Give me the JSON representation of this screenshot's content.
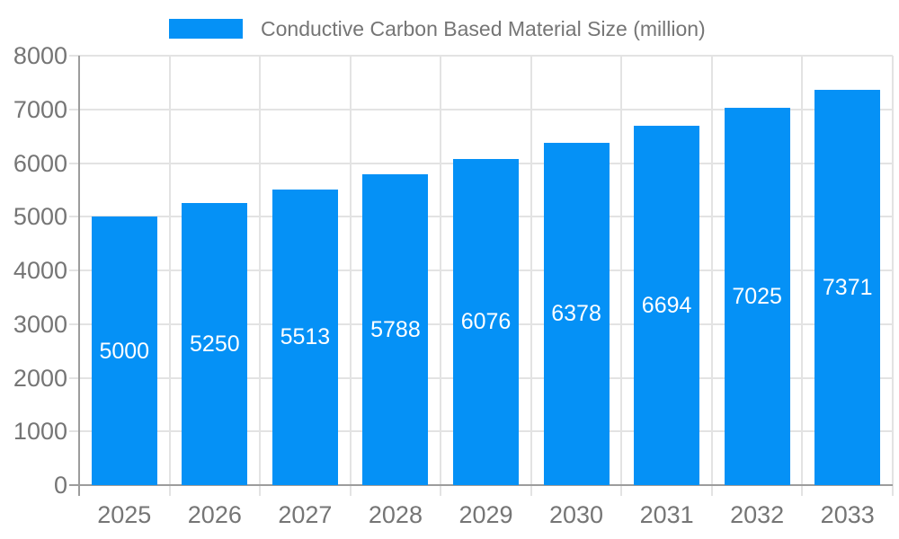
{
  "legend": {
    "label": "Conductive Carbon Based Material Size (million)"
  },
  "colors": {
    "bar": "#0591F6",
    "grid": "#E3E3E3",
    "axis": "#9C9C9C",
    "tick_label": "#757575",
    "bar_label": "#FFFFFF",
    "legend_label": "#757575",
    "background": "#FFFFFF"
  },
  "chart_data": {
    "type": "bar",
    "title": "Conductive Carbon Based Material Size (million)",
    "categories": [
      "2025",
      "2026",
      "2027",
      "2028",
      "2029",
      "2030",
      "2031",
      "2032",
      "2033"
    ],
    "series": [
      {
        "name": "Conductive Carbon Based Material Size (million)",
        "values": [
          5000,
          5250,
          5513,
          5788,
          6076,
          6378,
          6694,
          7025,
          7371
        ]
      }
    ],
    "xlabel": "",
    "ylabel": "",
    "ylim": [
      0,
      8000
    ],
    "yticks": [
      0,
      1000,
      2000,
      3000,
      4000,
      5000,
      6000,
      7000,
      8000
    ],
    "grid": true,
    "legend_position": "top",
    "bar_value_labels": "inside-middle"
  }
}
